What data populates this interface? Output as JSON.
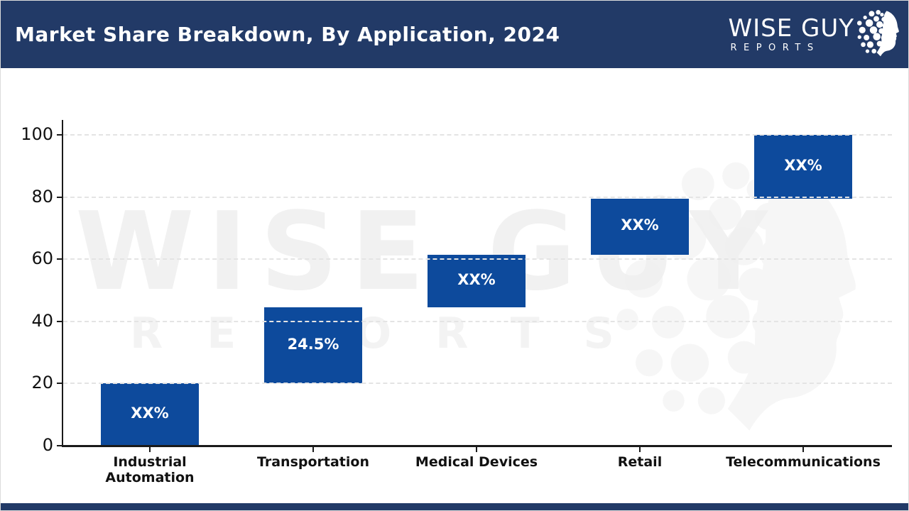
{
  "header": {
    "logo": {
      "line1": "WISE GUY",
      "line2": "REPORTS",
      "icon": "head-dots-icon"
    }
  },
  "watermark": {
    "line1": "WISE GUY",
    "line2": "REPORTS",
    "icon": "head-dots-icon"
  },
  "colors": {
    "header_bg": "#223a67",
    "footer_bg": "#223a67",
    "bar": "#0d4a9c",
    "bar_label": "#ffffff",
    "axis": "#1a1a1a",
    "grid": "#e4e4e4",
    "watermark": "#f1f1f1"
  },
  "chart_data": {
    "type": "bar",
    "subtype": "waterfall",
    "title": "Market Share Breakdown, By Application, 2024",
    "xlabel": "",
    "ylabel": "",
    "categories": [
      "Industrial Automation",
      "Transportation",
      "Medical Devices",
      "Retail",
      "Telecommunications"
    ],
    "starts": [
      0,
      20,
      44.5,
      61.5,
      79.5
    ],
    "values": [
      20,
      24.5,
      17,
      18,
      20.5
    ],
    "bar_labels": [
      "XX%",
      "24.5%",
      "XX%",
      "XX%",
      "XX%"
    ],
    "yticks": [
      0,
      20,
      40,
      60,
      80,
      100
    ],
    "ylim": [
      0,
      105
    ],
    "grid": "horizontal-dashed",
    "legend": "none"
  }
}
